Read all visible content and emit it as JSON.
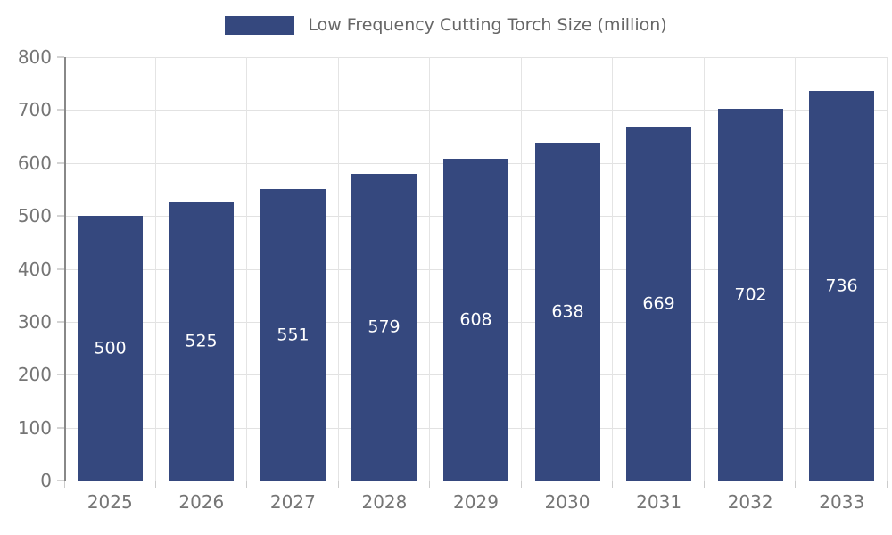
{
  "chart_data": {
    "type": "bar",
    "title": "",
    "series_name": "Low Frequency Cutting Torch Size (million)",
    "categories": [
      "2025",
      "2026",
      "2027",
      "2028",
      "2029",
      "2030",
      "2031",
      "2032",
      "2033"
    ],
    "values": [
      500,
      525,
      551,
      579,
      608,
      638,
      669,
      702,
      736
    ],
    "xlabel": "",
    "ylabel": "",
    "ylim": [
      0,
      800
    ],
    "yticks": [
      0,
      100,
      200,
      300,
      400,
      500,
      600,
      700,
      800
    ],
    "grid": true,
    "legend_position": "top-center",
    "value_labels": "inside-center"
  },
  "legend": {
    "label": "Low Frequency Cutting Torch Size (million)"
  },
  "colors": {
    "bar": "#35487e",
    "grid": "#e2e2e2",
    "axis": "#888888",
    "tick": "#cccccc",
    "tick_text": "#757575",
    "legend_text": "#666666",
    "value_label_text": "#ffffff",
    "background": "#ffffff"
  }
}
